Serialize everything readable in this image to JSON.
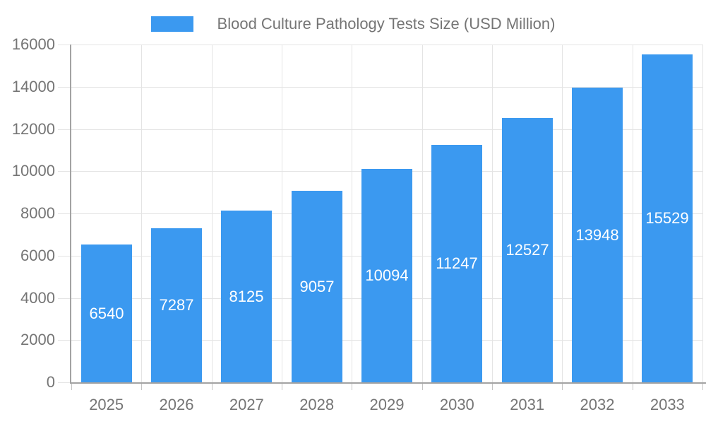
{
  "chart_data": {
    "type": "bar",
    "title": "Blood Culture Pathology Tests Size (USD Million)",
    "categories": [
      "2025",
      "2026",
      "2027",
      "2028",
      "2029",
      "2030",
      "2031",
      "2032",
      "2033"
    ],
    "values": [
      6540,
      7287,
      8125,
      9057,
      10094,
      11247,
      12527,
      13948,
      15529
    ],
    "xlabel": "",
    "ylabel": "",
    "ylim": [
      0,
      16000
    ],
    "ytick_step": 2000,
    "ytick_labels": [
      "0",
      "2000",
      "4000",
      "6000",
      "8000",
      "10000",
      "12000",
      "14000",
      "16000"
    ],
    "grid": "on",
    "legend_position": "top-center",
    "colors": {
      "bar": "#3B99F0",
      "bar_label": "#FFFFFF",
      "axis_text": "#757575",
      "axis_line": "#A3A3A3",
      "gridline": "#E4E4E4",
      "tick": "#C4C4C4"
    }
  }
}
